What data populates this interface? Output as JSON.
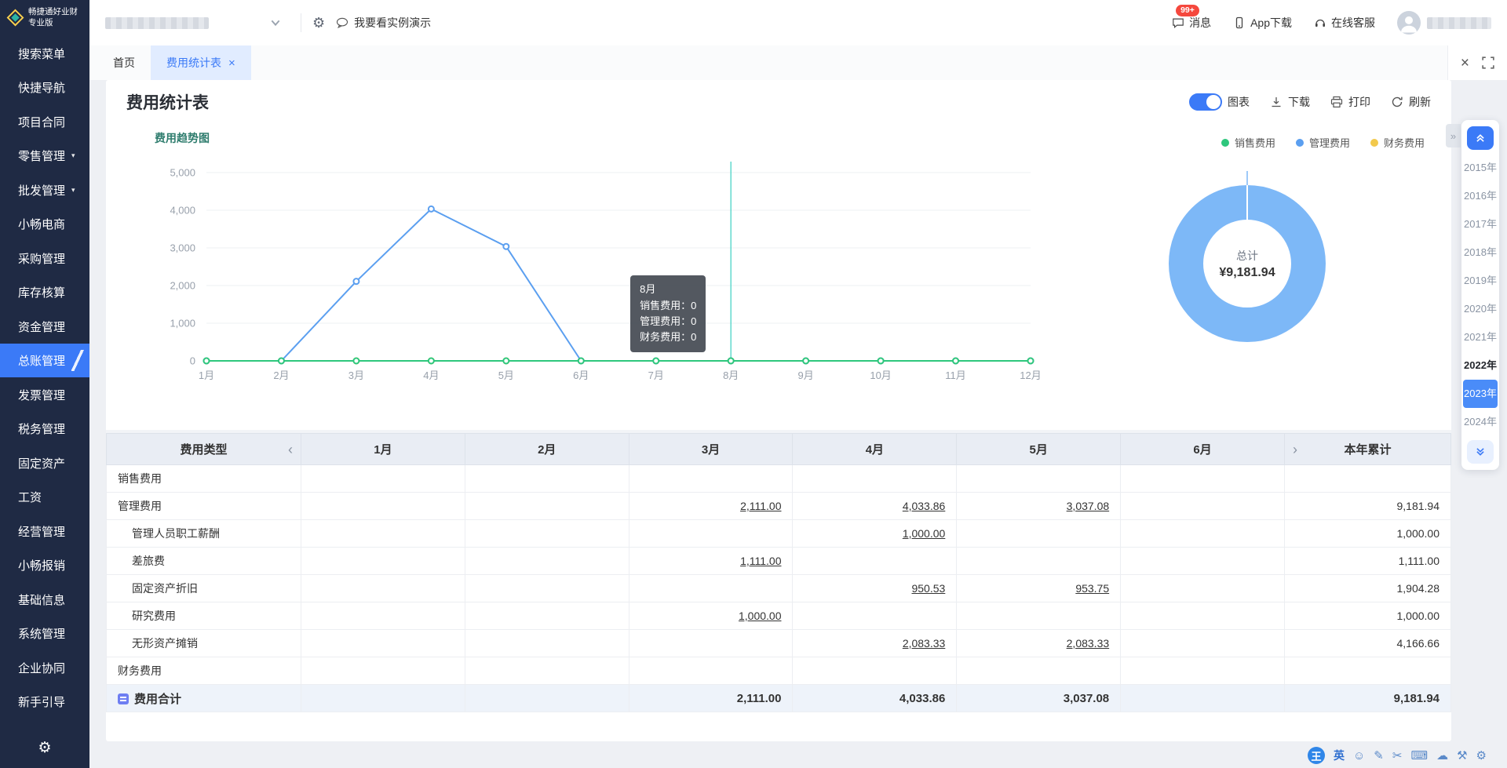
{
  "app": {
    "logo_title": "畅捷通好业财",
    "logo_subtitle": "专业版"
  },
  "topbar": {
    "demo_label": "我要看实例演示",
    "messages_label": "消息",
    "badge": "99+",
    "app_download_label": "App下载",
    "service_label": "在线客服"
  },
  "sidebar": {
    "items": [
      {
        "label": "搜索菜单"
      },
      {
        "label": "快捷导航"
      },
      {
        "label": "项目合同"
      },
      {
        "label": "零售管理",
        "arrow": true
      },
      {
        "label": "批发管理",
        "arrow": true
      },
      {
        "label": "小畅电商"
      },
      {
        "label": "采购管理"
      },
      {
        "label": "库存核算"
      },
      {
        "label": "资金管理"
      },
      {
        "label": "总账管理",
        "active": true
      },
      {
        "label": "发票管理"
      },
      {
        "label": "税务管理"
      },
      {
        "label": "固定资产"
      },
      {
        "label": "工资"
      },
      {
        "label": "经营管理"
      },
      {
        "label": "小畅报销"
      },
      {
        "label": "基础信息"
      },
      {
        "label": "系统管理"
      },
      {
        "label": "企业协同"
      },
      {
        "label": "新手引导"
      }
    ]
  },
  "tabs": {
    "home_label": "首页",
    "current_label": "费用统计表"
  },
  "page": {
    "title": "费用统计表",
    "toolbar": {
      "chart_toggle_label": "图表",
      "download_label": "下载",
      "print_label": "打印",
      "refresh_label": "刷新"
    }
  },
  "chart_data": [
    {
      "type": "line",
      "title": "费用趋势图",
      "categories": [
        "1月",
        "2月",
        "3月",
        "4月",
        "5月",
        "6月",
        "7月",
        "8月",
        "9月",
        "10月",
        "11月",
        "12月"
      ],
      "series": [
        {
          "name": "销售费用",
          "color": "#2ec77d",
          "values": [
            0,
            0,
            0,
            0,
            0,
            0,
            0,
            0,
            0,
            0,
            0,
            0
          ]
        },
        {
          "name": "管理费用",
          "color": "#5b9ff0",
          "values": [
            0,
            0,
            2111.0,
            4033.86,
            3037.08,
            0,
            0,
            0,
            0,
            0,
            0,
            0
          ]
        },
        {
          "name": "财务费用",
          "color": "#f2c94c",
          "values": [
            0,
            0,
            0,
            0,
            0,
            0,
            0,
            0,
            0,
            0,
            0,
            0
          ]
        }
      ],
      "ylim": [
        0,
        5000
      ],
      "yticks": [
        0,
        1000,
        2000,
        3000,
        4000,
        5000
      ],
      "ytick_labels": [
        "0",
        "1,000",
        "2,000",
        "3,000",
        "4,000",
        "5,000"
      ],
      "grid": true,
      "legend_position": "top-right",
      "tooltip": {
        "x_index": 7,
        "title": "8月",
        "lines": [
          "销售费用：0",
          "管理费用：0",
          "财务费用：0"
        ],
        "marker_color": "#3bd0c2"
      }
    },
    {
      "type": "donut",
      "center_label": "总计",
      "center_value": "¥9,181.94",
      "slices": [
        {
          "name": "管理费用",
          "value": 9181.94,
          "color": "#7db8f7"
        }
      ]
    }
  ],
  "year_panel": {
    "years": [
      "2015年",
      "2016年",
      "2017年",
      "2018年",
      "2019年",
      "2020年",
      "2021年",
      "2022年",
      "2023年",
      "2024年"
    ],
    "selected": "2023年",
    "emphasized": "2022年"
  },
  "table": {
    "type_header": "费用类型",
    "month_headers": [
      "1月",
      "2月",
      "3月",
      "4月",
      "5月",
      "6月"
    ],
    "total_header": "本年累计",
    "rows": [
      {
        "label": "销售费用",
        "indent": 0,
        "cells": [
          "",
          "",
          "",
          "",
          "",
          ""
        ],
        "total": ""
      },
      {
        "label": "管理费用",
        "indent": 0,
        "cells": [
          "",
          "",
          "2,111.00",
          "4,033.86",
          "3,037.08",
          ""
        ],
        "total": "9,181.94"
      },
      {
        "label": "管理人员职工薪酬",
        "indent": 1,
        "cells": [
          "",
          "",
          "",
          "1,000.00",
          "",
          ""
        ],
        "total": "1,000.00"
      },
      {
        "label": "差旅费",
        "indent": 1,
        "cells": [
          "",
          "",
          "1,111.00",
          "",
          "",
          ""
        ],
        "total": "1,111.00"
      },
      {
        "label": "固定资产折旧",
        "indent": 1,
        "cells": [
          "",
          "",
          "",
          "950.53",
          "953.75",
          ""
        ],
        "total": "1,904.28"
      },
      {
        "label": "研究费用",
        "indent": 1,
        "cells": [
          "",
          "",
          "1,000.00",
          "",
          "",
          ""
        ],
        "total": "1,000.00"
      },
      {
        "label": "无形资产摊销",
        "indent": 1,
        "cells": [
          "",
          "",
          "",
          "2,083.33",
          "2,083.33",
          ""
        ],
        "total": "4,166.66"
      },
      {
        "label": "财务费用",
        "indent": 0,
        "cells": [
          "",
          "",
          "",
          "",
          "",
          ""
        ],
        "total": ""
      },
      {
        "label": "费用合计",
        "indent": 0,
        "is_total": true,
        "cells": [
          "",
          "",
          "2,111.00",
          "4,033.86",
          "3,037.08",
          ""
        ],
        "total": "9,181.94"
      }
    ]
  },
  "ime": {
    "logo": "王",
    "lang": "英",
    "icons": [
      {
        "name": "emoji-icon",
        "glyph": "☺"
      },
      {
        "name": "pen-icon",
        "glyph": "✎"
      },
      {
        "name": "scissors-icon",
        "glyph": "✂"
      },
      {
        "name": "keyboard-icon",
        "glyph": "⌨"
      },
      {
        "name": "cloud-icon",
        "glyph": "☁"
      },
      {
        "name": "tools-icon",
        "glyph": "⚒"
      },
      {
        "name": "gear-icon",
        "glyph": "⚙"
      }
    ]
  },
  "colors": {
    "accent": "#3b7af7",
    "sidebar_bg": "#1f2a44",
    "badge_red": "#f5483d",
    "marker_teal": "#3bd0c2",
    "donut_blue": "#7db8f7"
  }
}
